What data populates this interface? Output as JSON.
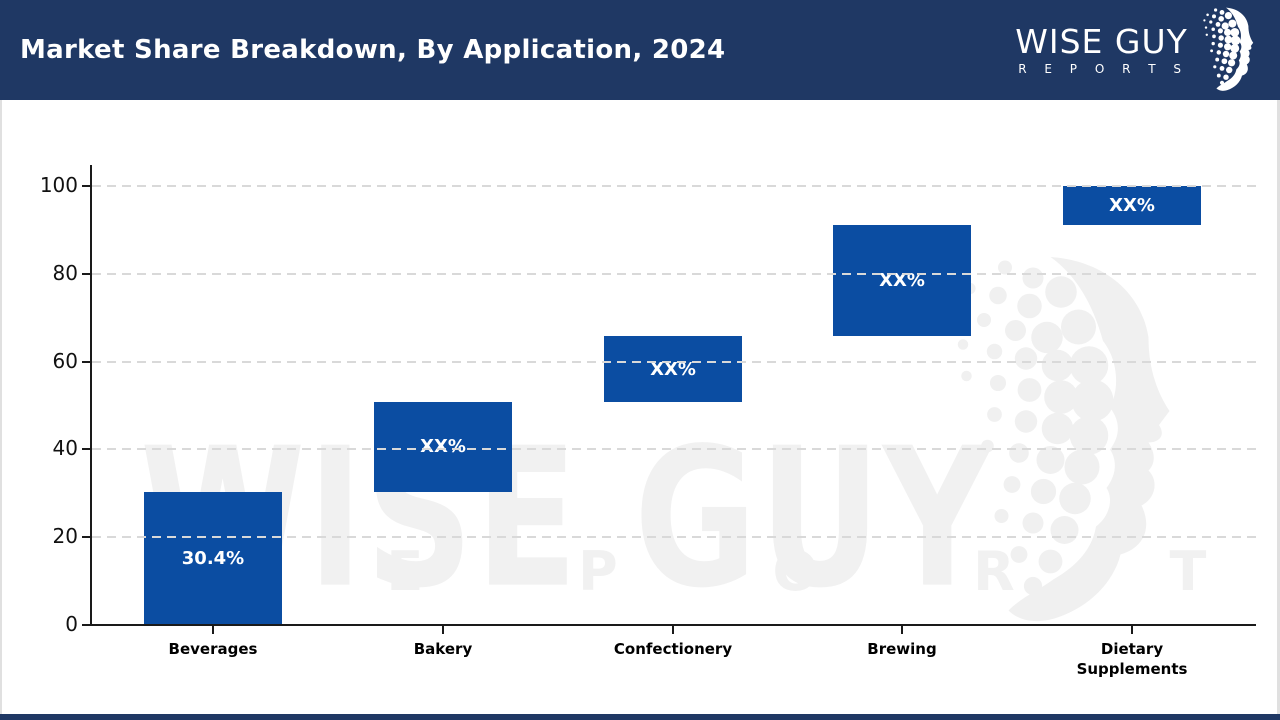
{
  "header": {
    "title": "Market Share Breakdown, By Application, 2024",
    "logo": {
      "wordmark": "WISE GUY",
      "subtitle": "R E P O R T S"
    }
  },
  "watermark": {
    "wordmark": "WISE GUY",
    "subtitle": "R E P O R T S"
  },
  "colors": {
    "header_bg": "#1f3864",
    "footer_bg": "#1f3864",
    "bar": "#0b4da2",
    "bar_label": "#ffffff",
    "grid": "#d9d9d9",
    "axis": "#1a1a1a",
    "tick_label": "#111111",
    "watermark": "#f1f1f1"
  },
  "chart_data": {
    "type": "bar",
    "subtype": "waterfall",
    "title": "Market Share Breakdown, By Application, 2024",
    "categories": [
      "Beverages",
      "Bakery",
      "Confectionery",
      "Brewing",
      "Dietary Supplements"
    ],
    "segments": [
      {
        "category": "Beverages",
        "start": 0,
        "end": 30.4,
        "label": "30.4%"
      },
      {
        "category": "Bakery",
        "start": 30.4,
        "end": 50.8,
        "label": "XX%"
      },
      {
        "category": "Confectionery",
        "start": 50.8,
        "end": 65.8,
        "label": "XX%"
      },
      {
        "category": "Brewing",
        "start": 65.8,
        "end": 91.2,
        "label": "XX%"
      },
      {
        "category": "Dietary Supplements",
        "start": 91.2,
        "end": 100,
        "label": "XX%"
      }
    ],
    "yticks": [
      0,
      20,
      40,
      60,
      80,
      100
    ],
    "ylim": [
      0,
      105
    ],
    "grid": "horizontal-dashed",
    "legend": "none",
    "xlabel": "",
    "ylabel": ""
  }
}
